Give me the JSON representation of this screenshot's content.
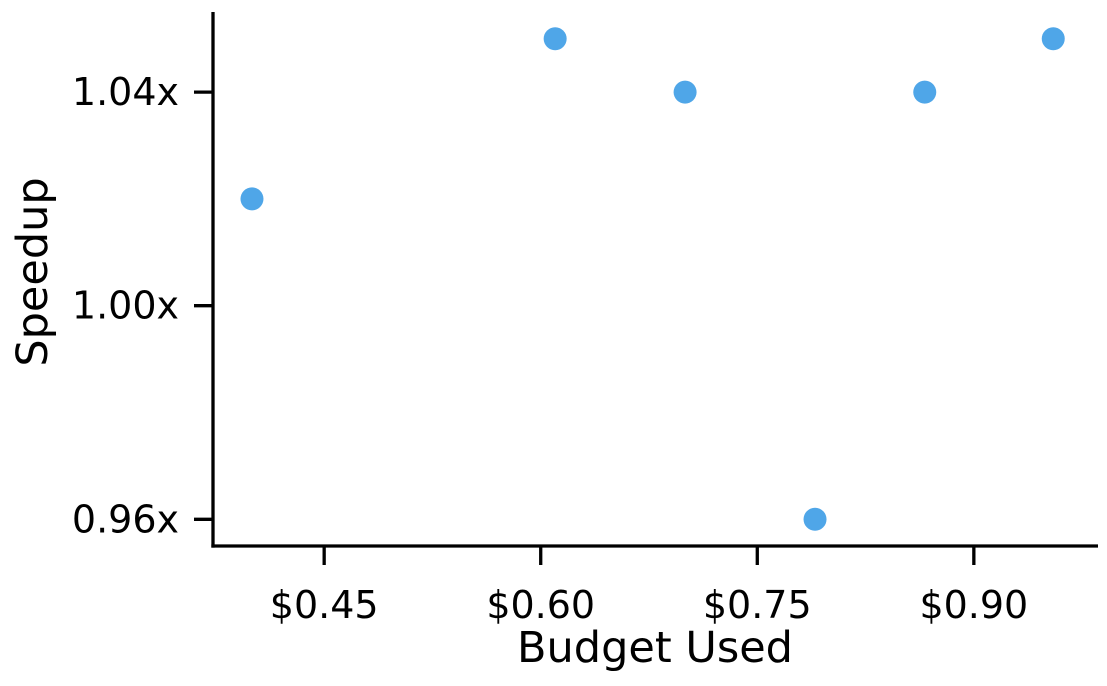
{
  "chart_data": {
    "type": "scatter",
    "title": "",
    "xlabel": "Budget Used",
    "ylabel": "Speedup",
    "points": [
      {
        "x": 0.4,
        "y": 1.02
      },
      {
        "x": 0.61,
        "y": 1.05
      },
      {
        "x": 0.7,
        "y": 1.04
      },
      {
        "x": 0.79,
        "y": 0.96
      },
      {
        "x": 0.866,
        "y": 1.04
      },
      {
        "x": 0.955,
        "y": 1.05
      }
    ],
    "x_ticks": [
      {
        "value": 0.45,
        "label": "$0.45"
      },
      {
        "value": 0.6,
        "label": "$0.60"
      },
      {
        "value": 0.75,
        "label": "$0.75"
      },
      {
        "value": 0.9,
        "label": "$0.90"
      }
    ],
    "y_ticks": [
      {
        "value": 1.04,
        "label": "1.04x"
      },
      {
        "value": 1.0,
        "label": "1.00x"
      },
      {
        "value": 0.96,
        "label": "0.96x"
      }
    ],
    "xlim": [
      0.373,
      0.986
    ],
    "ylim": [
      0.955,
      1.055
    ],
    "grid": false,
    "legend": "none",
    "marker_color": "#4FA6E8",
    "axis_color": "#000000",
    "background_color": "#FFFFFF"
  }
}
